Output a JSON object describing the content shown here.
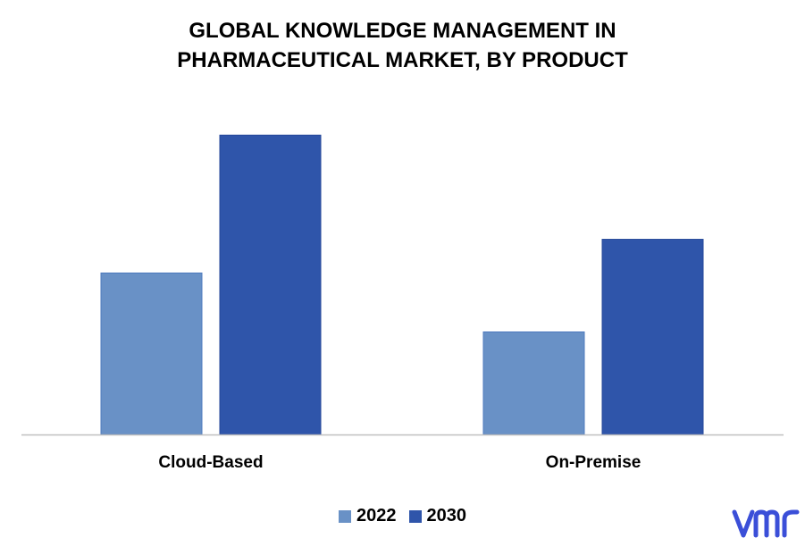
{
  "chart_data": {
    "type": "bar",
    "title_lines": [
      "GLOBAL KNOWLEDGE MANAGEMENT IN",
      "PHARMACEUTICAL MARKET, BY PRODUCT"
    ],
    "categories": [
      "Cloud-Based",
      "On-Premise"
    ],
    "series": [
      {
        "name": "2022",
        "values": [
          4.8,
          3.05
        ],
        "color": "#6991C6"
      },
      {
        "name": "2030",
        "values": [
          8.9,
          5.8
        ],
        "color": "#2F55AA"
      }
    ],
    "ylim": [
      0,
      10
    ],
    "grid": false,
    "legend_position": "bottom"
  },
  "logo": {
    "text": "vmr",
    "color": "#3B4FD8"
  }
}
